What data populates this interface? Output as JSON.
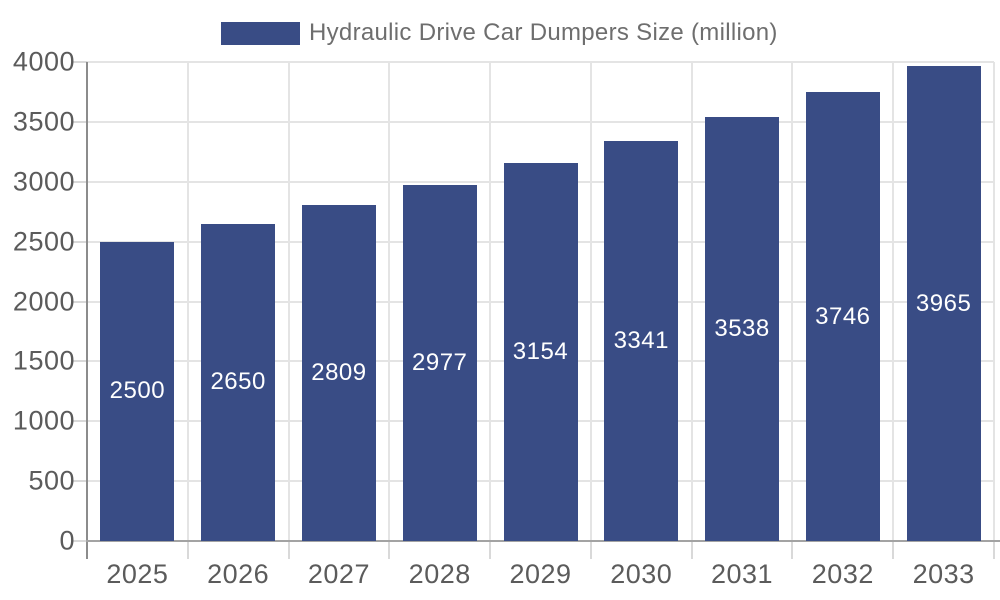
{
  "legend": {
    "label": "Hydraulic Drive Car Dumpers Size (million)"
  },
  "colors": {
    "bar": "#394C85",
    "grid": "#e4e4e4",
    "tick": "#d9d9d9",
    "y_axis": "#8c8c8c",
    "x_axis": "#a3a3a3",
    "axis_label": "#5b5b5b",
    "legend_text": "#6e6e6e",
    "value_label": "#ffffff",
    "background": "#ffffff"
  },
  "chart_data": {
    "type": "bar",
    "title": "Hydraulic Drive Car Dumpers Size (million)",
    "categories": [
      "2025",
      "2026",
      "2027",
      "2028",
      "2029",
      "2030",
      "2031",
      "2032",
      "2033"
    ],
    "values": [
      2500,
      2650,
      2809,
      2977,
      3154,
      3341,
      3538,
      3746,
      3965
    ],
    "xlabel": "",
    "ylabel": "",
    "ylim": [
      0,
      4000
    ],
    "yticks": [
      0,
      500,
      1000,
      1500,
      2000,
      2500,
      3000,
      3500,
      4000
    ],
    "grid": true,
    "legend_position": "top",
    "value_label_position": "inside-center"
  }
}
